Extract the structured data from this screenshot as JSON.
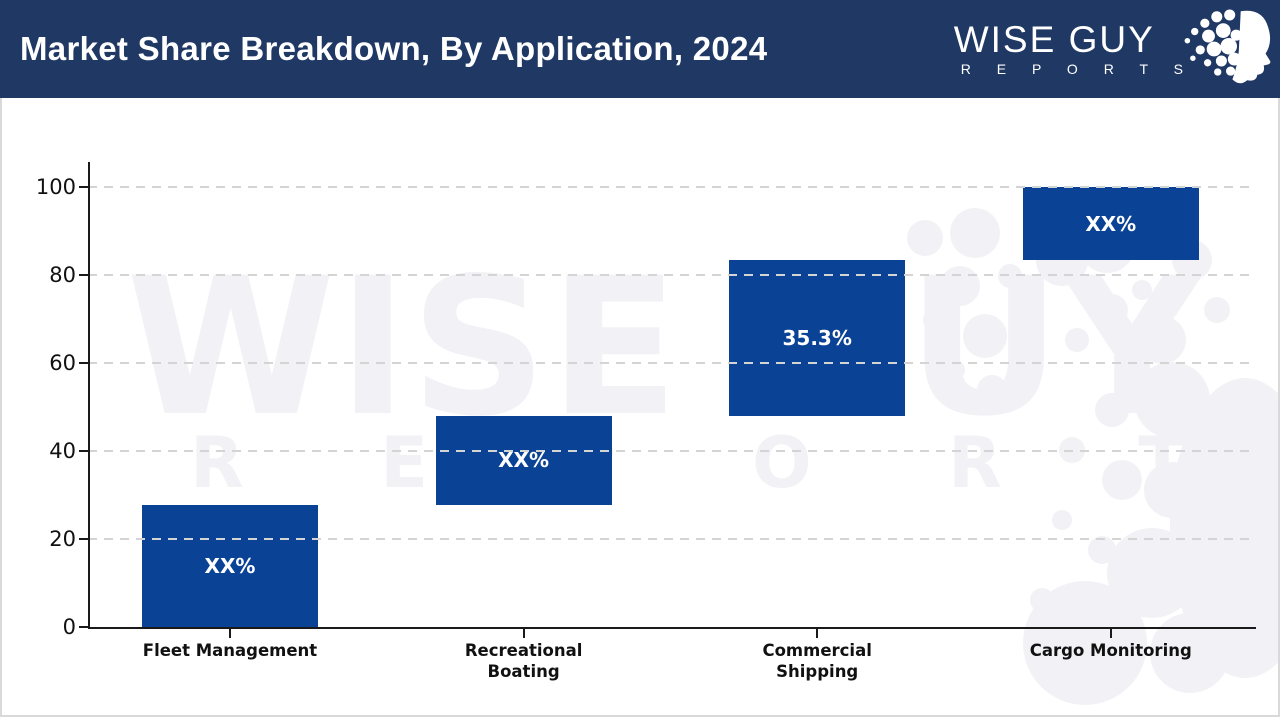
{
  "header": {
    "title": "Market Share Breakdown, By Application, 2024",
    "bg_color": "#1f3864",
    "logo": {
      "wordmark": "WISE GUY",
      "subtext": "R E P O R T S"
    }
  },
  "watermark": {
    "wordmark": "WISE GUY",
    "subtext": "R E P O R T S"
  },
  "chart_data": {
    "type": "bar",
    "subtype": "waterfall",
    "title": "Market Share Breakdown, By Application, 2024",
    "categories": [
      "Fleet Management",
      "Recreational\nBoating",
      "Commercial\nShipping",
      "Cargo Monitoring"
    ],
    "segments": [
      {
        "category": "Fleet Management",
        "start": 0,
        "end": 27.8,
        "label": "XX%"
      },
      {
        "category": "Recreational\nBoating",
        "start": 27.8,
        "end": 48.0,
        "label": "XX%"
      },
      {
        "category": "Commercial\nShipping",
        "start": 48.0,
        "end": 83.3,
        "label": "35.3%"
      },
      {
        "category": "Cargo Monitoring",
        "start": 83.3,
        "end": 100,
        "label": "XX%"
      }
    ],
    "ylim": [
      0,
      100
    ],
    "yticks": [
      0,
      20,
      40,
      60,
      80,
      100
    ],
    "grid": "dashed-horizontal",
    "legend": "none",
    "bar_color": "#0a4296",
    "value_label_color": "#ffffff",
    "axis_color": "#1a1a1a",
    "gridline_color": "#d4d4d4"
  }
}
